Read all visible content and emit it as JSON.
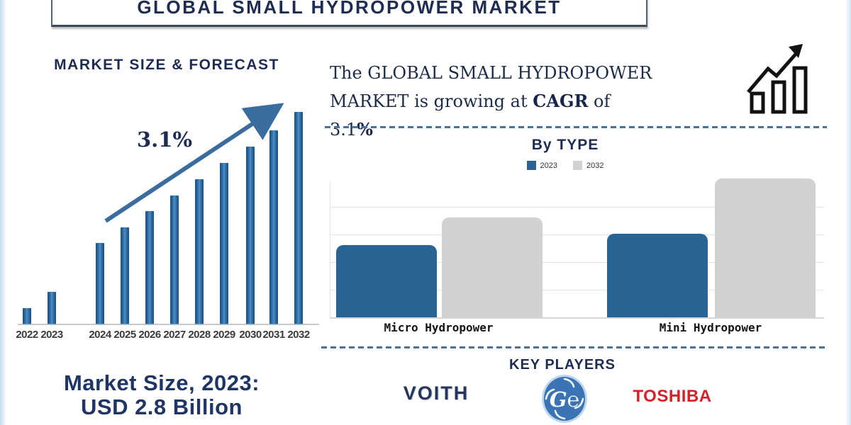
{
  "banner": {
    "title": "GLOBAL SMALL HYDROPOWER MARKET"
  },
  "forecast": {
    "heading": "MARKET SIZE & FORECAST",
    "cagr_label": "3.1%"
  },
  "cagr_text": {
    "part1": "The GLOBAL SMALL HYDROPOWER MARKET is growing at ",
    "bold1": "CAGR",
    "part2": " of 3.1",
    "bold2": "%"
  },
  "by_type": {
    "heading": "By TYPE",
    "legend": [
      {
        "label": "2023",
        "color": "#2a6495"
      },
      {
        "label": "2032",
        "color": "#d2d2d2"
      }
    ]
  },
  "key_players": {
    "heading": "KEY PLAYERS",
    "players": [
      {
        "name": "VOITH",
        "color": "#25355e"
      },
      {
        "name": "GE",
        "type": "logo",
        "color": "#3b74b5"
      },
      {
        "name": "TOSHIBA",
        "color": "#d2232a"
      }
    ]
  },
  "market_size": {
    "line1": "Market Size, 2023:",
    "line2": "USD 2.8 Billion"
  },
  "icons": {
    "growth": "growth-chart-icon",
    "trend_arrow": "trend-arrow-icon",
    "ge": "ge-logo"
  },
  "colors": {
    "navy_heading": "#1f2c52",
    "forecast_bar": "#2d6da5",
    "bytype_2023": "#2a6495",
    "bytype_2032": "#d2d2d2",
    "toshiba_red": "#d2232a",
    "divider_blue": "#4e7295"
  },
  "chart_data": [
    {
      "type": "bar",
      "title": "MARKET SIZE & FORECAST",
      "categories": [
        "2022",
        "2023",
        "2024",
        "2025",
        "2026",
        "2027",
        "2028",
        "2029",
        "2030",
        "2031",
        "2032"
      ],
      "values": [
        23,
        46,
        115,
        137,
        160,
        182,
        205,
        228,
        251,
        274,
        300
      ],
      "ylabel": "",
      "xlabel": "",
      "note": "no y-axis shown; values are relative bar heights. Known point: 2023 = USD 2.8 Billion. Growth arrow annotated 3.1% CAGR.",
      "annotations": [
        "3.1%"
      ],
      "grid": false,
      "legend_position": "none"
    },
    {
      "type": "bar",
      "title": "By TYPE",
      "categories": [
        "Micro Hydropower",
        "Mini Hydropower"
      ],
      "series": [
        {
          "name": "2023",
          "values": [
            52,
            60
          ]
        },
        {
          "name": "2032",
          "values": [
            72,
            100
          ]
        }
      ],
      "ylim": [
        0,
        100
      ],
      "note": "no y-axis labels shown; values are relative (100 = tallest bar, Mini Hydropower 2032)",
      "grid": true,
      "legend_position": "top"
    }
  ]
}
